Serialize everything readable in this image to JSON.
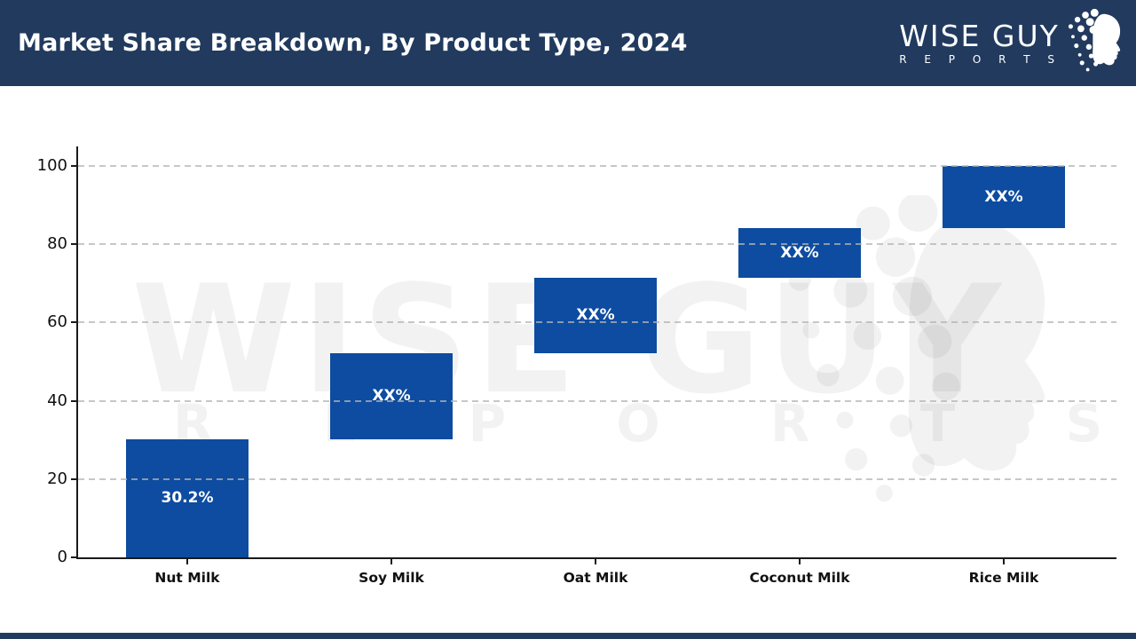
{
  "page": {
    "background_color": "#FFFFFF",
    "accent_navy": "#213A5E"
  },
  "header": {
    "title": "Market Share Breakdown, By Product Type, 2024",
    "logo_line1": "WISE GUY",
    "logo_line2": "R E P O R T S"
  },
  "watermark": {
    "line1": "WISE GUY",
    "line2": "R E P O R T S"
  },
  "chart_data": {
    "type": "bar",
    "subtype": "waterfall",
    "title": "Market Share Breakdown, By Product Type, 2024",
    "categories": [
      "Nut Milk",
      "Soy Milk",
      "Oat Milk",
      "Coconut Milk",
      "Rice Milk"
    ],
    "segments": [
      {
        "category": "Nut Milk",
        "start": 0,
        "end": 30.2,
        "label": "30.2%"
      },
      {
        "category": "Soy Milk",
        "start": 30.2,
        "end": 52.2,
        "label": "XX%"
      },
      {
        "category": "Oat Milk",
        "start": 52.2,
        "end": 71.5,
        "label": "XX%"
      },
      {
        "category": "Coconut Milk",
        "start": 71.5,
        "end": 84.1,
        "label": "XX%"
      },
      {
        "category": "Rice Milk",
        "start": 84.1,
        "end": 100,
        "label": "XX%"
      }
    ],
    "y_ticks": [
      0,
      20,
      40,
      60,
      80,
      100
    ],
    "ylim": [
      0,
      105
    ],
    "xlabel": "",
    "ylabel": "",
    "grid": true,
    "grid_style": "dashed",
    "legend": "none",
    "bar_color": "#0D4CA0",
    "bar_label_color": "#FFFFFF"
  }
}
